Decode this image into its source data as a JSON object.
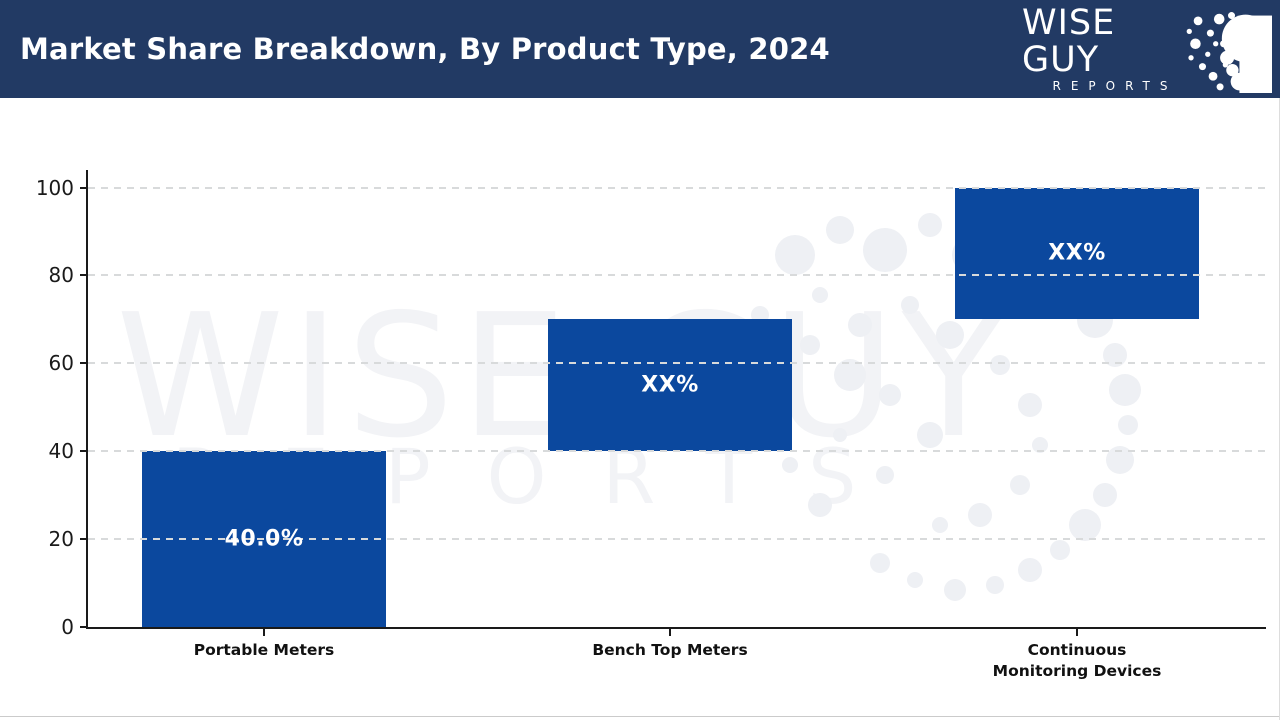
{
  "header": {
    "title": "Market Share Breakdown, By Product Type, 2024",
    "logo": {
      "line1": "WISE GUY",
      "line2": "REPORTS"
    }
  },
  "watermark": {
    "line1": "WISE GUY",
    "line2": "REPORTS"
  },
  "colors": {
    "header_bg": "#223a64",
    "bar": "#0b489e",
    "bar_label": "#ffffff",
    "gridline": "#d8dadb",
    "axis": "#1a1a1a",
    "watermark_text": "#f2f3f6",
    "watermark_dots": "#eef0f4"
  },
  "chart_data": {
    "type": "bar",
    "subtype": "waterfall",
    "title": "Market Share Breakdown, By Product Type, 2024",
    "categories": [
      "Portable Meters",
      "Bench Top Meters",
      "Continuous Monitoring Devices"
    ],
    "category_lines": [
      [
        "Portable Meters"
      ],
      [
        "Bench Top Meters"
      ],
      [
        "Continuous",
        "Monitoring Devices"
      ]
    ],
    "bars": [
      {
        "category": "Portable Meters",
        "start": 0,
        "end": 40,
        "value": 40,
        "label": "40.0%"
      },
      {
        "category": "Bench Top Meters",
        "start": 40,
        "end": 70,
        "value": 30,
        "label": "XX%"
      },
      {
        "category": "Continuous Monitoring Devices",
        "start": 70,
        "end": 100,
        "value": 30,
        "label": "XX%"
      }
    ],
    "yticks": [
      0,
      20,
      40,
      60,
      80,
      100
    ],
    "ylim": [
      0,
      104
    ],
    "grid": "dashed horizontal, drawn above bars",
    "legend": "none",
    "xlabel": "",
    "ylabel": ""
  }
}
